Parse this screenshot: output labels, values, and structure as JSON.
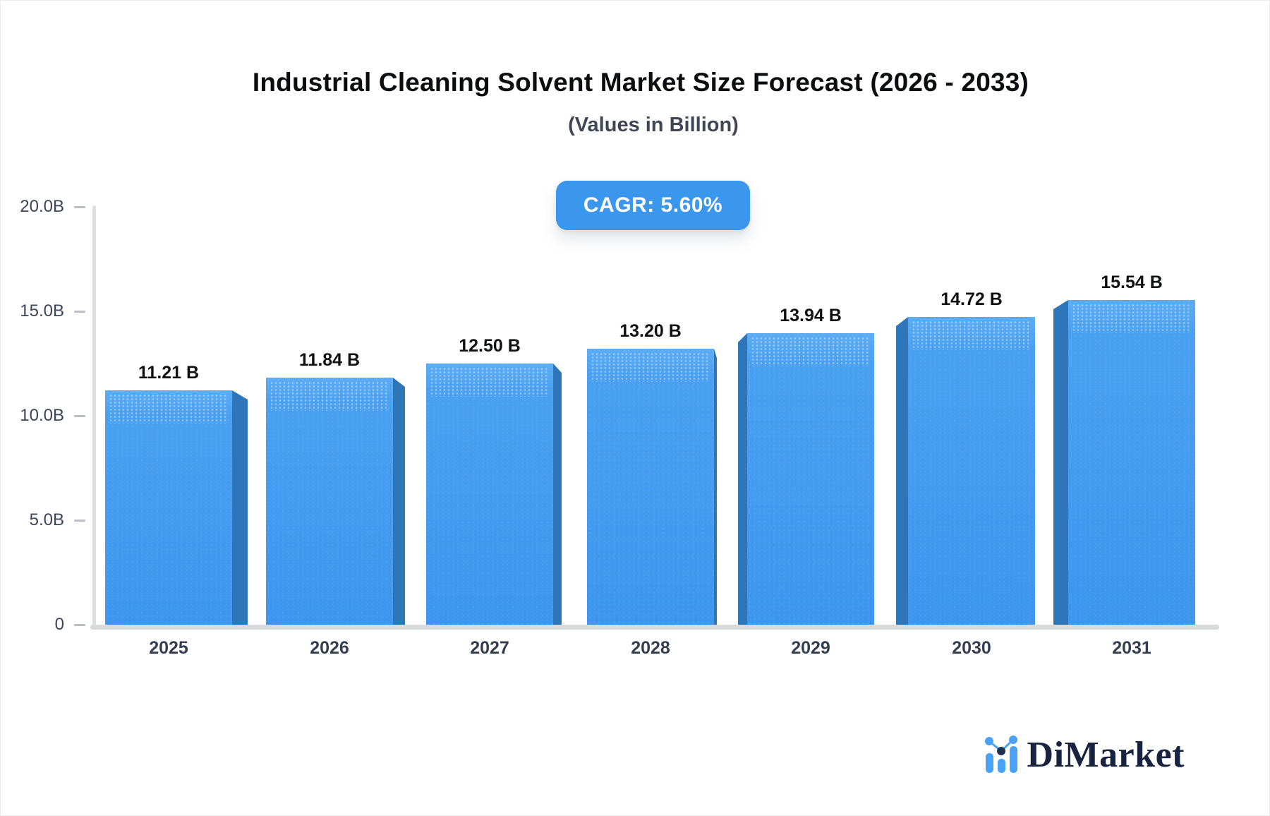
{
  "header": {
    "title": "Industrial Cleaning Solvent Market Size Forecast (2026 - 2033)",
    "subtitle": "(Values in Billion)",
    "cagr_label": "CAGR: 5.60%"
  },
  "chart_data": {
    "type": "bar",
    "title": "Industrial Cleaning Solvent Market Size Forecast (2026 - 2033)",
    "subtitle": "(Values in Billion)",
    "cagr": "5.60%",
    "categories": [
      "2025",
      "2026",
      "2027",
      "2028",
      "2029",
      "2030",
      "2031"
    ],
    "values": [
      11.21,
      11.84,
      12.5,
      13.2,
      13.94,
      14.72,
      15.54
    ],
    "value_labels": [
      "11.21 B",
      "11.84 B",
      "12.50 B",
      "13.20 B",
      "13.94 B",
      "14.72 B",
      "15.54 B"
    ],
    "unit": "Billion",
    "ylim": [
      0,
      20
    ],
    "ytick_values": [
      20,
      15,
      10,
      5,
      0
    ],
    "ytick_labels": [
      "20.0B",
      "15.0B",
      "10.0B",
      "5.0B",
      "0"
    ],
    "grid": false,
    "legend_position": "none",
    "bar_style": "3d-perspective"
  },
  "colors": {
    "accent_badge": "#3b97ed",
    "bar_face_top": "#5cacf4",
    "bar_face_bottom": "#3d96ee",
    "bar_side": "#2e75b9",
    "axis_gray": "#d8dade",
    "logo_blue": "#4aa2f6",
    "logo_navy": "#20304f"
  },
  "footer": {
    "brand": "DiMarket"
  }
}
